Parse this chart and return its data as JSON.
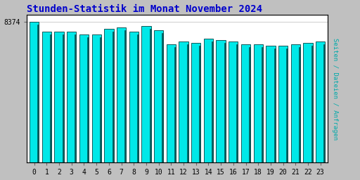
{
  "title": "Stunden-Statistik im Monat November 2024",
  "title_color": "#0000cc",
  "title_fontsize": 10,
  "ylabel_right": "Seiten / Dateien / Anfragen",
  "ylabel_right_color": "#00aaaa",
  "background_color": "#c0c0c0",
  "plot_bg_color": "#ffffff",
  "bar_color_cyan": "#00e8e8",
  "bar_color_dark": "#006060",
  "bar_edge_color": "#004040",
  "categories": [
    0,
    1,
    2,
    3,
    4,
    5,
    6,
    7,
    8,
    9,
    10,
    11,
    12,
    13,
    14,
    15,
    16,
    17,
    18,
    19,
    20,
    21,
    22,
    23
  ],
  "values_main": [
    100,
    93,
    93,
    93,
    91,
    91,
    95,
    96,
    93,
    97,
    94,
    84,
    86,
    85,
    88,
    87,
    86,
    84,
    84,
    83,
    83,
    84,
    85,
    86
  ],
  "values_dark": [
    98,
    91,
    91,
    91,
    89,
    89,
    93,
    94,
    91,
    95,
    92,
    82,
    84,
    83,
    86,
    85,
    84,
    82,
    82,
    81,
    81,
    82,
    83,
    84
  ],
  "ylim": [
    0,
    105
  ],
  "ytick_label": "8374",
  "ytick_pos": 100,
  "bar_width": 0.75
}
